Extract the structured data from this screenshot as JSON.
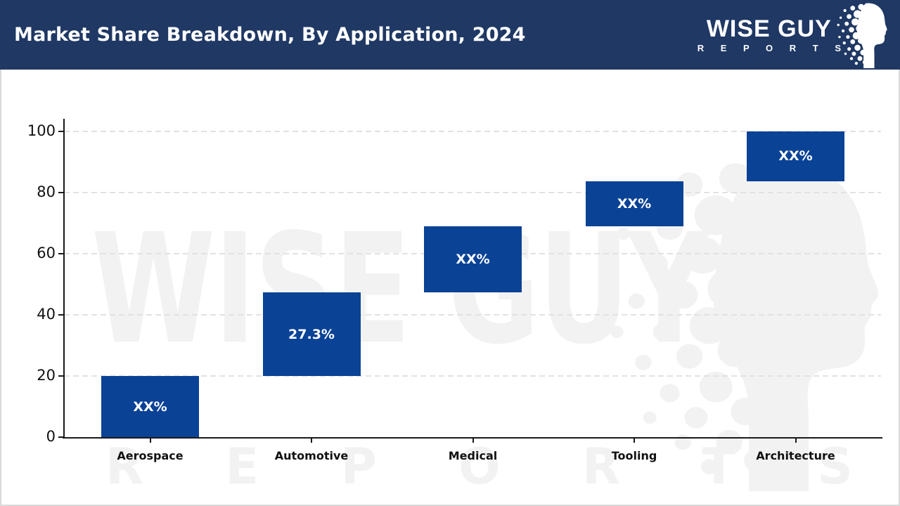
{
  "header": {
    "title": "Market Share Breakdown, By Application, 2024",
    "bg_color": "#1f3864",
    "logo": {
      "line1": "WISE GUY",
      "line2": "R E P O R T S"
    }
  },
  "watermark": {
    "line1": "WISE GUY",
    "line2": "R E P O R T S"
  },
  "chart_data": {
    "type": "bar",
    "subtype": "waterfall-floating-bars",
    "title": "Market Share Breakdown, By Application, 2024",
    "categories": [
      "Aerospace",
      "Automotive",
      "Medical",
      "Tooling",
      "Architecture"
    ],
    "segments": [
      {
        "category": "Aerospace",
        "start": 0,
        "end": 20,
        "label": "XX%"
      },
      {
        "category": "Automotive",
        "start": 20,
        "end": 47.3,
        "label": "27.3%"
      },
      {
        "category": "Medical",
        "start": 47.3,
        "end": 69,
        "label": "XX%"
      },
      {
        "category": "Tooling",
        "start": 69,
        "end": 83.7,
        "label": "XX%"
      },
      {
        "category": "Architecture",
        "start": 83.7,
        "end": 100,
        "label": "XX%"
      }
    ],
    "values": [
      20,
      27.3,
      21.7,
      14.7,
      16.3
    ],
    "xlabel": "",
    "ylabel": "",
    "yticks": [
      0,
      20,
      40,
      60,
      80,
      100
    ],
    "ylim": [
      0,
      104
    ],
    "bar_color": "#0a4296",
    "grid": "horizontal-dashed",
    "grid_color": "#e2e2e2",
    "legend": "none"
  }
}
